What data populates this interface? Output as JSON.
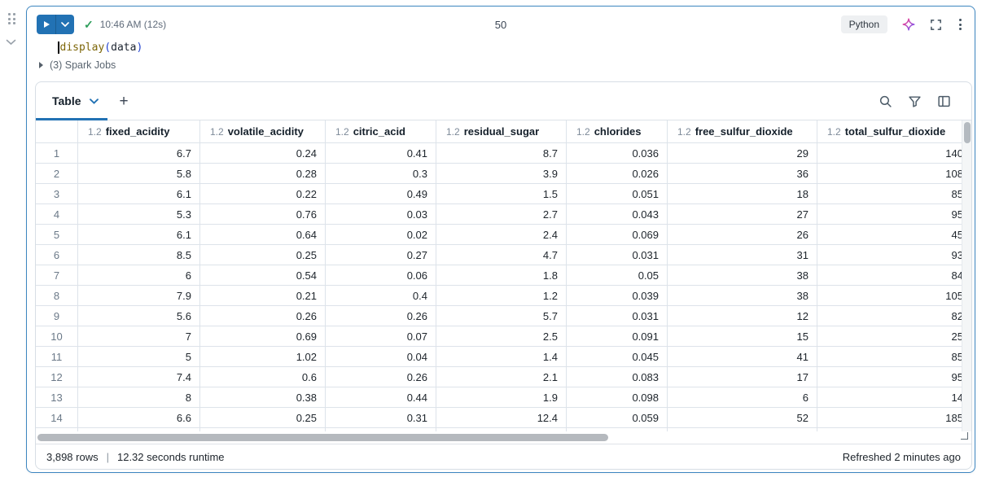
{
  "colors": {
    "accent_blue": "#2272b4",
    "success_green": "#2e9e5b"
  },
  "cell_header": {
    "runtime": "10:46 AM (12s)",
    "cell_number": "50",
    "language_label": "Python"
  },
  "code": {
    "fn": "display",
    "open": "(",
    "arg": "data",
    "close": ")"
  },
  "spark": {
    "label": "(3) Spark Jobs"
  },
  "results": {
    "active_tab": "Table",
    "add_tab": "+",
    "footer": {
      "rows_count": "3,898 rows",
      "separator": "|",
      "runtime": "12.32 seconds runtime",
      "refreshed": "Refreshed 2 minutes ago"
    }
  },
  "table": {
    "type_badge": "1.2",
    "columns": [
      "fixed_acidity",
      "volatile_acidity",
      "citric_acid",
      "residual_sugar",
      "chlorides",
      "free_sulfur_dioxide",
      "total_sulfur_dioxide"
    ],
    "rows": [
      {
        "n": "1",
        "values": [
          "6.7",
          "0.24",
          "0.41",
          "8.7",
          "0.036",
          "29",
          "140"
        ]
      },
      {
        "n": "2",
        "values": [
          "5.8",
          "0.28",
          "0.3",
          "3.9",
          "0.026",
          "36",
          "108"
        ]
      },
      {
        "n": "3",
        "values": [
          "6.1",
          "0.22",
          "0.49",
          "1.5",
          "0.051",
          "18",
          "85"
        ]
      },
      {
        "n": "4",
        "values": [
          "5.3",
          "0.76",
          "0.03",
          "2.7",
          "0.043",
          "27",
          "95"
        ]
      },
      {
        "n": "5",
        "values": [
          "6.1",
          "0.64",
          "0.02",
          "2.4",
          "0.069",
          "26",
          "45"
        ]
      },
      {
        "n": "6",
        "values": [
          "8.5",
          "0.25",
          "0.27",
          "4.7",
          "0.031",
          "31",
          "93"
        ]
      },
      {
        "n": "7",
        "values": [
          "6",
          "0.54",
          "0.06",
          "1.8",
          "0.05",
          "38",
          "84"
        ]
      },
      {
        "n": "8",
        "values": [
          "7.9",
          "0.21",
          "0.4",
          "1.2",
          "0.039",
          "38",
          "105"
        ]
      },
      {
        "n": "9",
        "values": [
          "5.6",
          "0.26",
          "0.26",
          "5.7",
          "0.031",
          "12",
          "82"
        ]
      },
      {
        "n": "10",
        "values": [
          "7",
          "0.69",
          "0.07",
          "2.5",
          "0.091",
          "15",
          "25"
        ]
      },
      {
        "n": "11",
        "values": [
          "5",
          "1.02",
          "0.04",
          "1.4",
          "0.045",
          "41",
          "85"
        ]
      },
      {
        "n": "12",
        "values": [
          "7.4",
          "0.6",
          "0.26",
          "2.1",
          "0.083",
          "17",
          "95"
        ]
      },
      {
        "n": "13",
        "values": [
          "8",
          "0.38",
          "0.44",
          "1.9",
          "0.098",
          "6",
          "14"
        ]
      },
      {
        "n": "14",
        "values": [
          "6.6",
          "0.25",
          "0.31",
          "12.4",
          "0.059",
          "52",
          "185"
        ]
      }
    ]
  }
}
